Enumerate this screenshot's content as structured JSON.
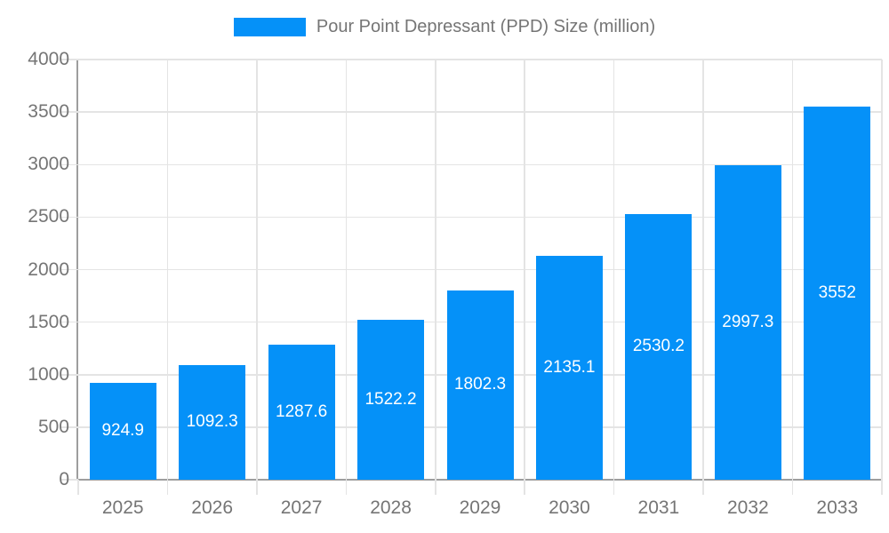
{
  "legend": {
    "series_label": "Pour Point Depressant (PPD) Size (million)"
  },
  "chart_data": {
    "type": "bar",
    "title": "Pour Point Depressant (PPD) Size (million)",
    "xlabel": "",
    "ylabel": "",
    "categories": [
      "2025",
      "2026",
      "2027",
      "2028",
      "2029",
      "2030",
      "2031",
      "2032",
      "2033"
    ],
    "values": [
      924.9,
      1092.3,
      1287.6,
      1522.2,
      1802.3,
      2135.1,
      2530.2,
      2997.3,
      3552
    ],
    "value_labels": [
      "924.9",
      "1092.3",
      "1287.6",
      "1522.2",
      "1802.3",
      "2135.1",
      "2530.2",
      "2997.3",
      "3552"
    ],
    "ylim": [
      0,
      4000
    ],
    "yticks": [
      0,
      500,
      1000,
      1500,
      2000,
      2500,
      3000,
      3500,
      4000
    ],
    "grid": true,
    "legend_position": "top",
    "colors": {
      "bar": "#0591f8",
      "grid": "#e4e4e4",
      "axis": "#9e9e9e",
      "tick_text": "#757575",
      "bar_label": "#ffffff",
      "background": "#ffffff"
    }
  }
}
